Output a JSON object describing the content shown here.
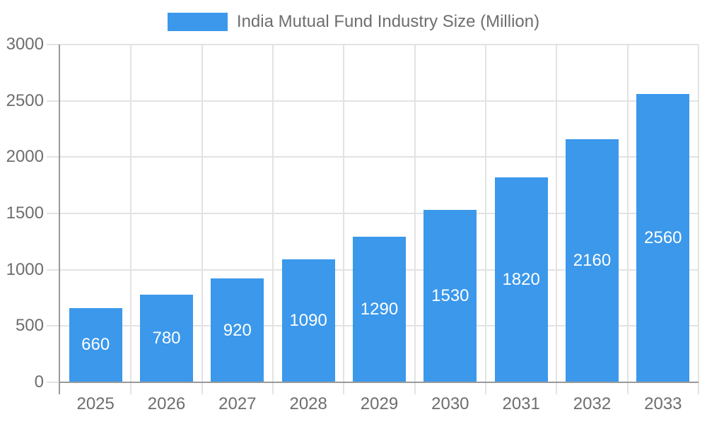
{
  "chart_data": {
    "type": "bar",
    "title": "India Mutual Fund Industry Size (Million)",
    "categories": [
      "2025",
      "2026",
      "2027",
      "2028",
      "2029",
      "2030",
      "2031",
      "2032",
      "2033"
    ],
    "values": [
      660,
      780,
      920,
      1090,
      1290,
      1530,
      1820,
      2160,
      2560
    ],
    "series": [
      {
        "name": "India Mutual Fund Industry Size (Million)",
        "values": [
          660,
          780,
          920,
          1090,
          1290,
          1530,
          1820,
          2160,
          2560
        ]
      }
    ],
    "xlabel": "",
    "ylabel": "",
    "ylim": [
      0,
      3000
    ],
    "yticks": [
      0,
      500,
      1000,
      1500,
      2000,
      2500,
      3000
    ],
    "grid": true,
    "legend_position": "top",
    "bar_color": "#3B98EB",
    "value_label_color": "#FFFFFF",
    "axis_text_color": "#6E6E6E",
    "grid_color": "#E3E3E3",
    "axis_line_color": "#999999",
    "background_color": "#FFFFFF"
  }
}
